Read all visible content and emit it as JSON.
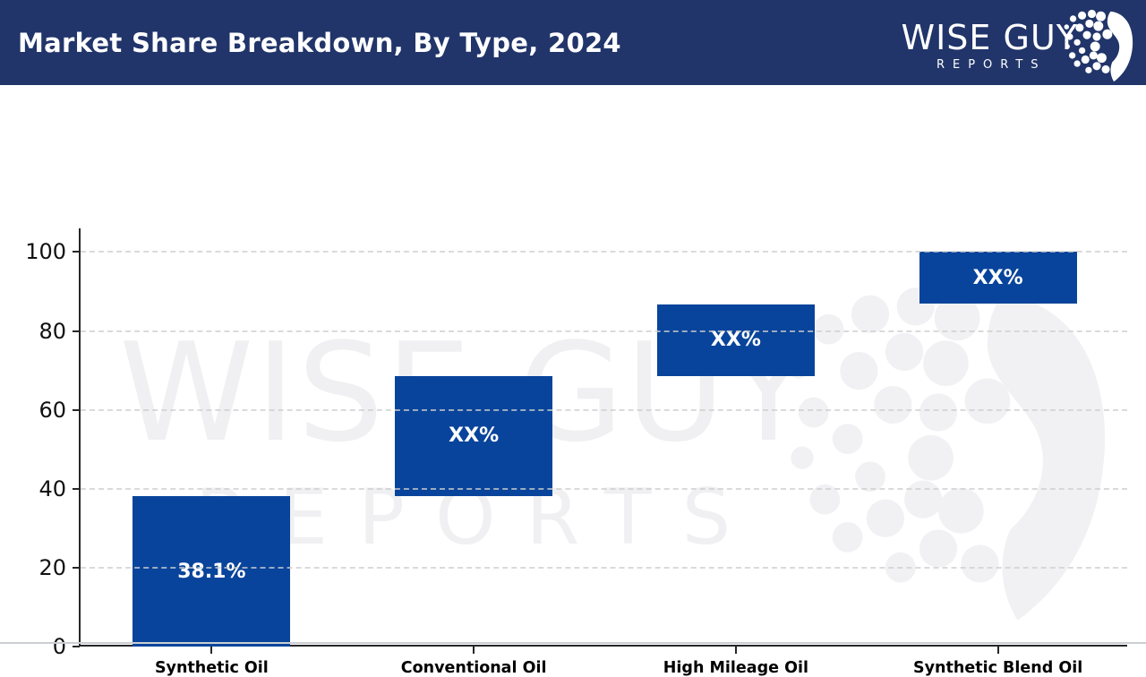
{
  "header": {
    "title": "Market Share Breakdown, By Type, 2024",
    "bg_color": "#21356a",
    "logo": {
      "line1": "WISE GUY",
      "line2": "REPORTS"
    }
  },
  "watermark": {
    "line1": "WISE GUY",
    "line2": "REPORTS"
  },
  "chart_data": {
    "type": "bar",
    "subtype": "waterfall",
    "title": "Market Share Breakdown, By Type, 2024",
    "categories": [
      "Synthetic Oil",
      "Conventional Oil",
      "High Mileage Oil",
      "Synthetic Blend Oil"
    ],
    "bars": [
      {
        "category": "Synthetic Oil",
        "start": 0,
        "end": 38.1,
        "label": "38.1%"
      },
      {
        "category": "Conventional Oil",
        "start": 38.1,
        "end": 68.6,
        "label": "XX%"
      },
      {
        "category": "High Mileage Oil",
        "start": 68.6,
        "end": 86.8,
        "label": "XX%"
      },
      {
        "category": "Synthetic Blend Oil",
        "start": 86.9,
        "end": 100,
        "label": "XX%"
      }
    ],
    "y_ticks": [
      0,
      20,
      40,
      60,
      80,
      100
    ],
    "y_tick_labels": [
      "0",
      "20",
      "40",
      "60",
      "80",
      "100"
    ],
    "ylim": [
      0,
      106
    ],
    "xlabel": "",
    "ylabel": "",
    "grid": true,
    "gridline_style": "dashed",
    "legend": false,
    "bar_color": "#08449b",
    "bar_label_color": "#ffffff",
    "axis_color": "#262626"
  }
}
